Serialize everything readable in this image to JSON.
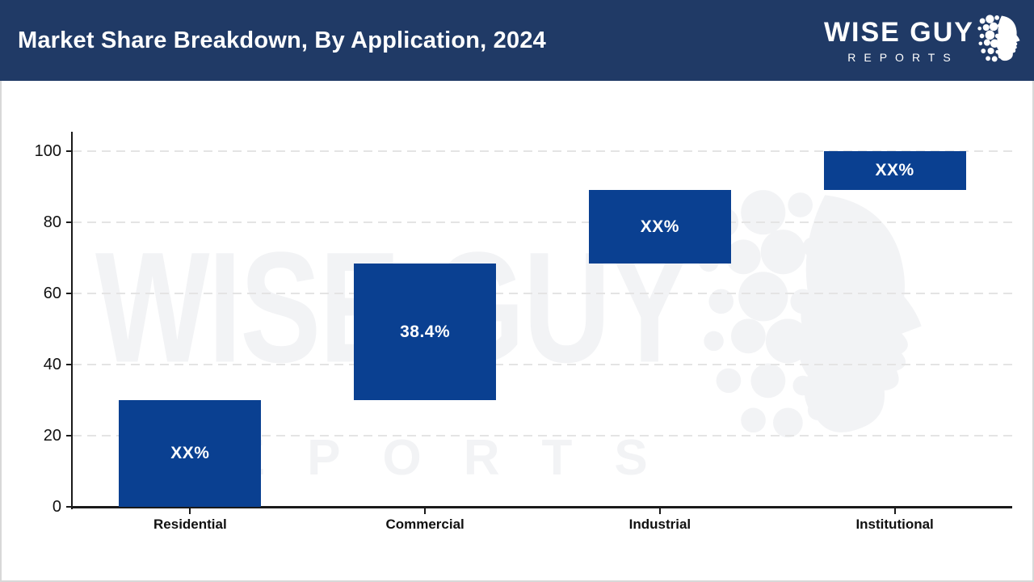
{
  "header": {
    "title": "Market Share Breakdown, By Application, 2024",
    "logo": {
      "line1": "WISE GUY",
      "line2": "REPORTS"
    }
  },
  "watermark": {
    "line1": "WISE GUY",
    "line2": "REPORTS"
  },
  "colors": {
    "header_bg": "#203A66",
    "bar": "#0A4091",
    "bar_label": "#FFFFFF",
    "title_text": "#FFFFFF",
    "axis": "#1A1A1A",
    "grid": "#E4E4E4",
    "watermark": "#F2F3F5",
    "panel_border": "#D8D8D8"
  },
  "chart_data": {
    "type": "bar",
    "subtype": "waterfall",
    "title": "Market Share Breakdown, By Application, 2024",
    "categories": [
      "Residential",
      "Commercial",
      "Industrial",
      "Institutional"
    ],
    "series": [
      {
        "name": "Market share (%)",
        "segments": [
          {
            "category": "Residential",
            "start": 0,
            "end": 30,
            "label": "XX%"
          },
          {
            "category": "Commercial",
            "start": 30,
            "end": 68.4,
            "label": "38.4%",
            "value": 38.4
          },
          {
            "category": "Industrial",
            "start": 68.4,
            "end": 89,
            "label": "XX%"
          },
          {
            "category": "Institutional",
            "start": 89,
            "end": 100,
            "label": "XX%"
          }
        ]
      }
    ],
    "ylim": [
      0,
      105
    ],
    "yticks": [
      0,
      20,
      40,
      60,
      80,
      100
    ],
    "xlabel": "",
    "ylabel": "",
    "grid": "horizontal-dashed",
    "legend": "none"
  }
}
